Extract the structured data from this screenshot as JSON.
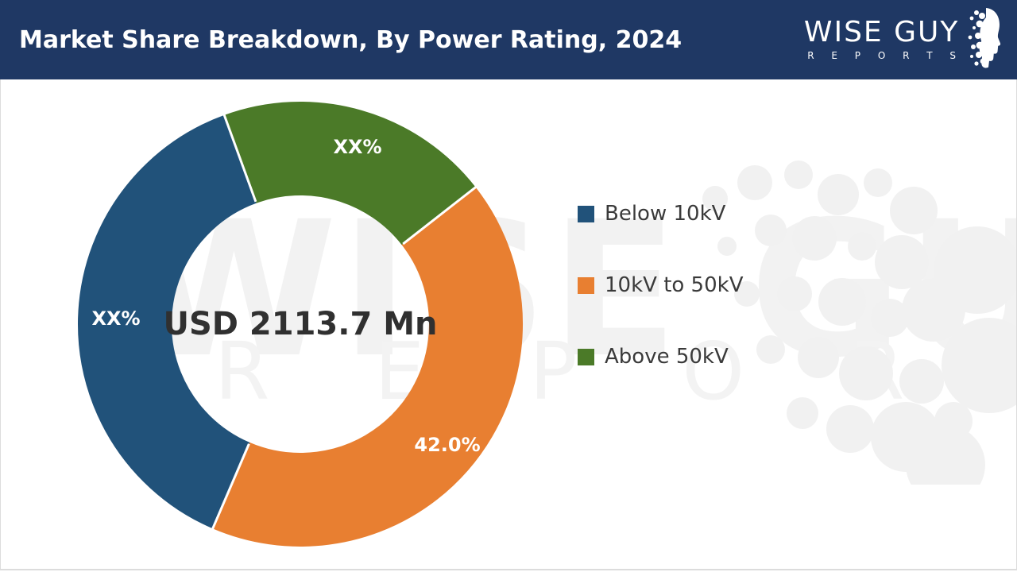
{
  "header": {
    "title": "Market Share Breakdown, By Power Rating, 2024",
    "logo": {
      "name": "WISE GUY",
      "subtitle": "R E P O R T S"
    }
  },
  "chart_data": {
    "type": "pie",
    "donut": true,
    "title": "Market Share Breakdown, By Power Rating, 2024",
    "center_label": "USD 2113.7 Mn",
    "legend_position": "right",
    "start_angle_deg_from_north": -20,
    "draw_order_clockwise": [
      "Above 50kV",
      "10kV to 50kV",
      "Below 10kV"
    ],
    "slices": [
      {
        "label": "Below 10kV",
        "display_value": "XX%",
        "value_pct": 38,
        "color": "#21527a",
        "note": "numeric value masked on chart; 38% estimated from arc angle"
      },
      {
        "label": "10kV to 50kV",
        "display_value": "42.0%",
        "value_pct": 42,
        "color": "#e87f31"
      },
      {
        "label": "Above 50kV",
        "display_value": "XX%",
        "value_pct": 20,
        "color": "#4b7a28",
        "note": "numeric value masked on chart; 20% estimated from arc angle"
      }
    ]
  },
  "watermark": {
    "line1": "WISE GUY",
    "line2": "R E P O R T S"
  },
  "colors": {
    "header_bg": "#1f3864",
    "title_text": "#ffffff",
    "center_text": "#303030",
    "legend_text": "#3a3a3a",
    "slice_label_text": "#ffffff",
    "watermark": "#f2f2f2",
    "frame_border": "#dcdcdc"
  }
}
